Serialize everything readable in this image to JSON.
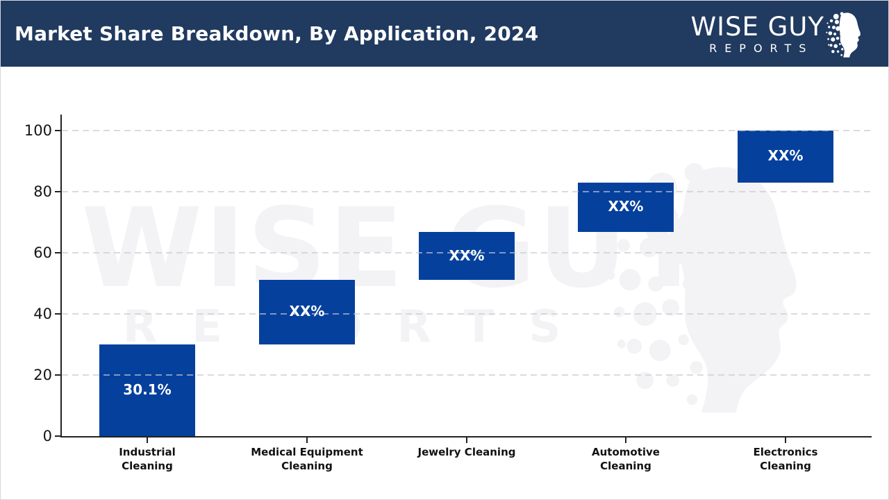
{
  "header": {
    "title": "Market Share Breakdown, By Application, 2024",
    "logo": {
      "wordmark": "WISE GUY",
      "subtitle": "REPORTS"
    }
  },
  "watermark": {
    "wordmark": "WISE GUY",
    "subtitle": "REPORTS"
  },
  "chart_data": {
    "type": "bar",
    "subtype": "waterfall",
    "title": "Market Share Breakdown, By Application, 2024",
    "categories": [
      "Industrial\nCleaning",
      "Medical Equipment\nCleaning",
      "Jewelry Cleaning",
      "Automotive\nCleaning",
      "Electronics\nCleaning"
    ],
    "segments": [
      {
        "category": "Industrial Cleaning",
        "start": 0,
        "end": 30.1,
        "label": "30.1%"
      },
      {
        "category": "Medical Equipment Cleaning",
        "start": 30.1,
        "end": 51.1,
        "label": "XX%"
      },
      {
        "category": "Jewelry Cleaning",
        "start": 51.1,
        "end": 66.8,
        "label": "XX%"
      },
      {
        "category": "Automotive Cleaning",
        "start": 66.8,
        "end": 83.0,
        "label": "XX%"
      },
      {
        "category": "Electronics Cleaning",
        "start": 83.0,
        "end": 100,
        "label": "XX%"
      }
    ],
    "y_ticks": [
      0,
      20,
      40,
      60,
      80,
      100
    ],
    "ylim": [
      0,
      100
    ],
    "xlabel": "",
    "ylabel": "",
    "grid": "horizontal-dashed",
    "legend": "none",
    "colors": {
      "bar": "#05409d",
      "bar_label": "#ffffff",
      "header_bg": "#203a60",
      "axis": "#222222",
      "grid": "#d0d0d5",
      "watermark": "#f3f3f6"
    }
  }
}
